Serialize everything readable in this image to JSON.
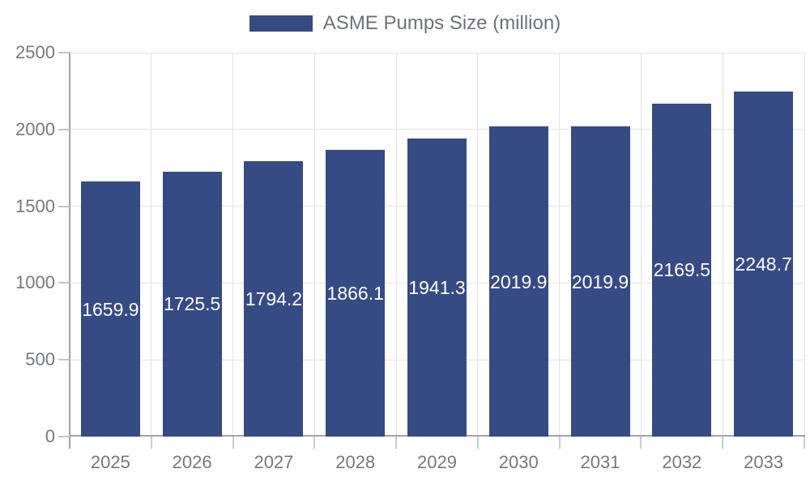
{
  "legend": {
    "label": "ASME Pumps Size (million)"
  },
  "chart_data": {
    "type": "bar",
    "title": "",
    "series_name": "ASME Pumps Size (million)",
    "categories": [
      "2025",
      "2026",
      "2027",
      "2028",
      "2029",
      "2030",
      "2031",
      "2032",
      "2033"
    ],
    "values": [
      1659.9,
      1725.5,
      1794.2,
      1866.1,
      1941.3,
      2019.9,
      2019.9,
      2169.5,
      2248.7
    ],
    "value_labels": [
      "1659.9",
      "1725.5",
      "1794.2",
      "1866.1",
      "1941.3",
      "2019.9",
      "2019.9",
      "2169.5",
      "2248.7"
    ],
    "xlabel": "",
    "ylabel": "",
    "ylim": [
      0,
      2500
    ],
    "yticks": [
      0,
      500,
      1000,
      1500,
      2000,
      2500
    ],
    "grid": true,
    "legend_position": "top-center",
    "colors": {
      "bar": "#364a84",
      "background": "#ffffff",
      "grid": "#e3e3e3",
      "axis_line": "#a3a3a3",
      "tick": "#c9cdd6",
      "axis_label": "#75787b",
      "legend_text": "#6e7277",
      "value_label": "#ffffff"
    }
  }
}
